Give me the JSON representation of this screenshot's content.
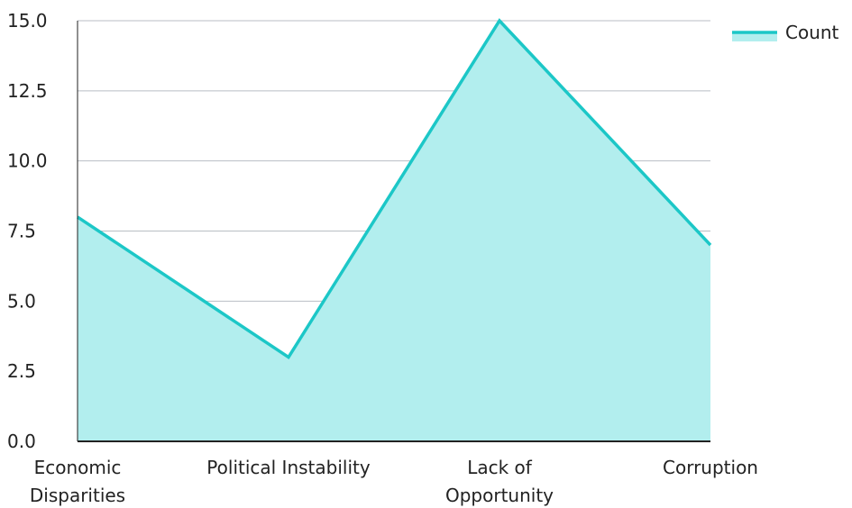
{
  "chart_data": {
    "type": "area",
    "categories": [
      [
        "Economic",
        "Disparities"
      ],
      [
        "Political Instability"
      ],
      [
        "Lack of",
        "Opportunity"
      ],
      [
        "Corruption"
      ]
    ],
    "series": [
      {
        "name": "Count",
        "values": [
          8,
          3,
          15,
          7
        ]
      }
    ],
    "yticks": [
      "0.0",
      "2.5",
      "5.0",
      "7.5",
      "10.0",
      "12.5",
      "15.0"
    ],
    "ylim": [
      0,
      15
    ],
    "grid": true,
    "legend": "top-right",
    "colors": {
      "line": "#1cc7c7",
      "fill": "#b2eeee",
      "grid": "#b9bec4",
      "axis": "#222222"
    }
  }
}
